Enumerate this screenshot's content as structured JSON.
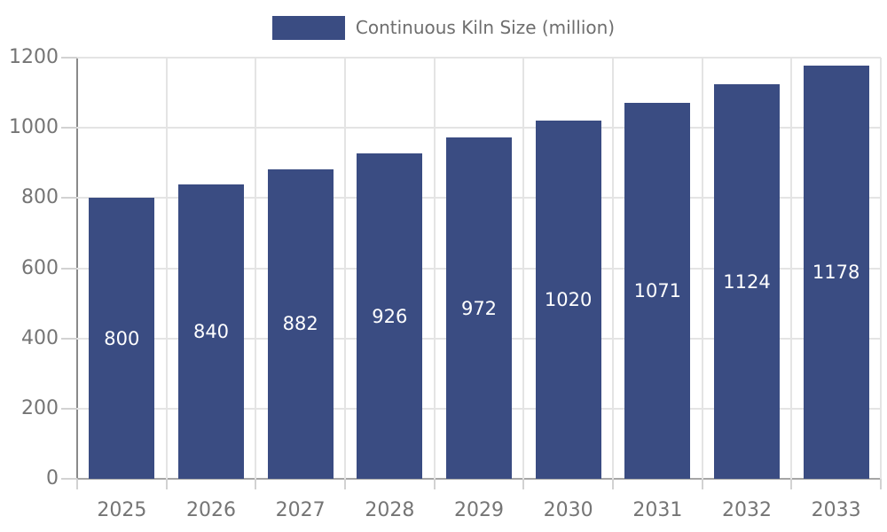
{
  "chart_data": {
    "type": "bar",
    "title": "",
    "series_name": "Continuous Kiln Size (million)",
    "categories": [
      "2025",
      "2026",
      "2027",
      "2028",
      "2029",
      "2030",
      "2031",
      "2032",
      "2033"
    ],
    "values": [
      800,
      840,
      882,
      926,
      972,
      1020,
      1071,
      1124,
      1178
    ],
    "xlabel": "",
    "ylabel": "",
    "ylim": [
      0,
      1200
    ],
    "yticks": [
      0,
      200,
      400,
      600,
      800,
      1000,
      1200
    ],
    "grid": true,
    "legend_position": "top-center",
    "value_labels": "inside-center"
  },
  "colors": {
    "bar": "#3a4c82",
    "grid": "#e4e4e4",
    "spine": "#8a8a8a",
    "axis_line": "#a6a6a6",
    "tick": "#d2d2d2",
    "tick_label": "#757575",
    "legend_text": "#6e6e6e",
    "value_label": "#ffffff",
    "background": "#ffffff"
  }
}
